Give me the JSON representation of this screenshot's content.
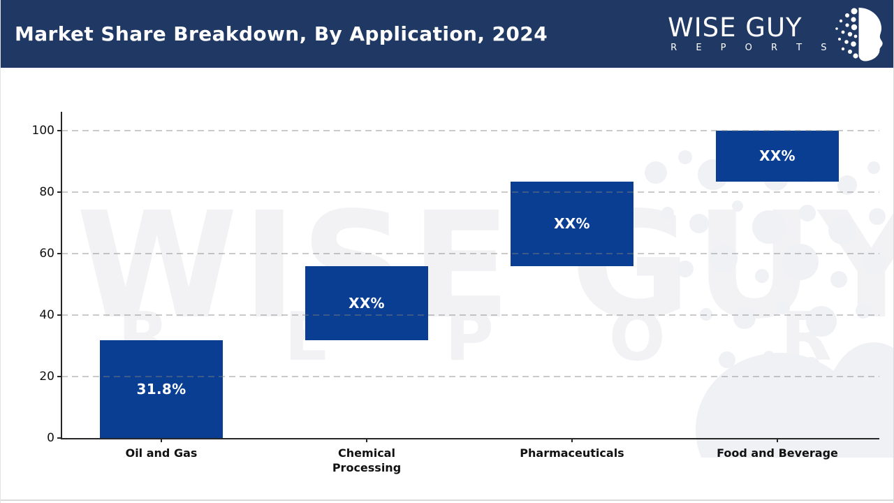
{
  "header": {
    "title": "Market Share Breakdown, By Application, 2024",
    "background_color": "#1f3864",
    "logo": {
      "brand_line1": "WISE GUY",
      "brand_line2": "R E P O R T S"
    }
  },
  "watermark": {
    "line1": "WISE GUY",
    "line2": "R E P O R T S"
  },
  "chart_data": {
    "type": "bar",
    "subtype": "floating-waterfall",
    "title": "Market Share Breakdown, By Application, 2024",
    "categories": [
      "Oil and Gas",
      "Chemical Processing",
      "Pharmaceuticals",
      "Food and Beverage"
    ],
    "category_labels_display": [
      "Oil and Gas",
      "Chemical\nProcessing",
      "Pharmaceuticals",
      "Food and Beverage"
    ],
    "segments": [
      {
        "category": "Oil and Gas",
        "start": 0,
        "end": 31.8,
        "label": "31.8%"
      },
      {
        "category": "Chemical Processing",
        "start": 31.8,
        "end": 56.0,
        "label": "XX%"
      },
      {
        "category": "Pharmaceuticals",
        "start": 56.0,
        "end": 83.5,
        "label": "XX%"
      },
      {
        "category": "Food and Beverage",
        "start": 83.5,
        "end": 100,
        "label": "XX%"
      }
    ],
    "ylim": [
      0,
      100
    ],
    "yticks": [
      0,
      20,
      40,
      60,
      80,
      100
    ],
    "grid": {
      "horizontal": true,
      "style": "dashed",
      "color": "#cfcfcf"
    },
    "bar_color": "#0a3e92",
    "bar_label_color": "#ffffff",
    "axis_color": "#262626",
    "legend": null
  }
}
